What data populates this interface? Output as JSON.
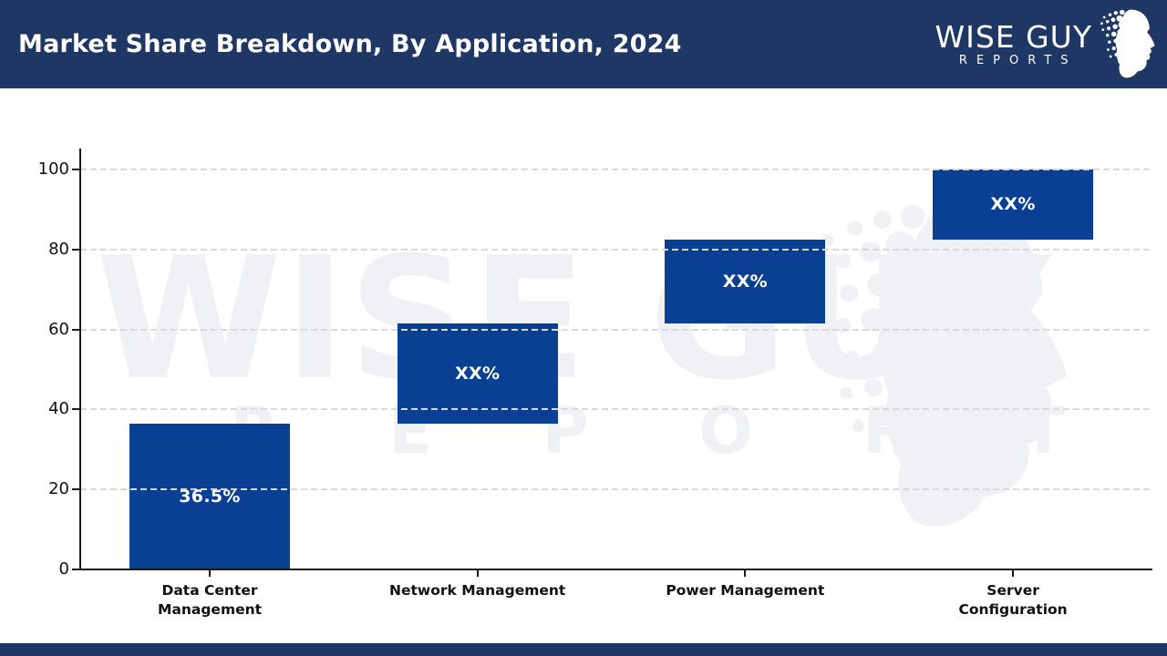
{
  "header": {
    "title": "Market Share Breakdown, By Application, 2024",
    "logo": {
      "line1": "WISE GUY",
      "line2": "REPORTS"
    }
  },
  "watermark": {
    "line1": "WISE GUY",
    "line2": "R E P O R T S"
  },
  "footer": {
    "present": true
  },
  "colors": {
    "header_bg": "#1f3765",
    "footer_bg": "#1f3765",
    "bar_fill": "#0a4094",
    "bar_label": "#ffffff",
    "gridline": "#d9d9d9",
    "watermark": "#f0f1f4",
    "axis": "#1a1a1a",
    "chart_bg": "#ffffff"
  },
  "chart_data": {
    "type": "bar",
    "variant": "waterfall",
    "title": "Market Share Breakdown, By Application, 2024",
    "categories": [
      "Data Center Management",
      "Network Management",
      "Power Management",
      "Server Configuration"
    ],
    "category_label_lines": [
      [
        "Data Center",
        "Management"
      ],
      [
        "Network Management"
      ],
      [
        "Power Management"
      ],
      [
        "Server",
        "Configuration"
      ]
    ],
    "segments": [
      {
        "category": "Data Center Management",
        "start": 0,
        "end": 36.5,
        "value": 36.5,
        "label": "36.5%"
      },
      {
        "category": "Network Management",
        "start": 36.5,
        "end": 61.5,
        "value": 25.0,
        "label": "XX%"
      },
      {
        "category": "Power Management",
        "start": 61.5,
        "end": 82.5,
        "value": 21.0,
        "label": "XX%"
      },
      {
        "category": "Server Configuration",
        "start": 82.5,
        "end": 100,
        "value": 17.5,
        "label": "XX%"
      }
    ],
    "xlabel": "",
    "ylabel": "",
    "ylim": [
      0,
      100
    ],
    "yticks": [
      0,
      20,
      40,
      60,
      80,
      100
    ],
    "grid": {
      "axis": "y",
      "style": "dashed",
      "drawn_over_bars": true
    },
    "legend": null,
    "bar_labels_inside": true
  }
}
